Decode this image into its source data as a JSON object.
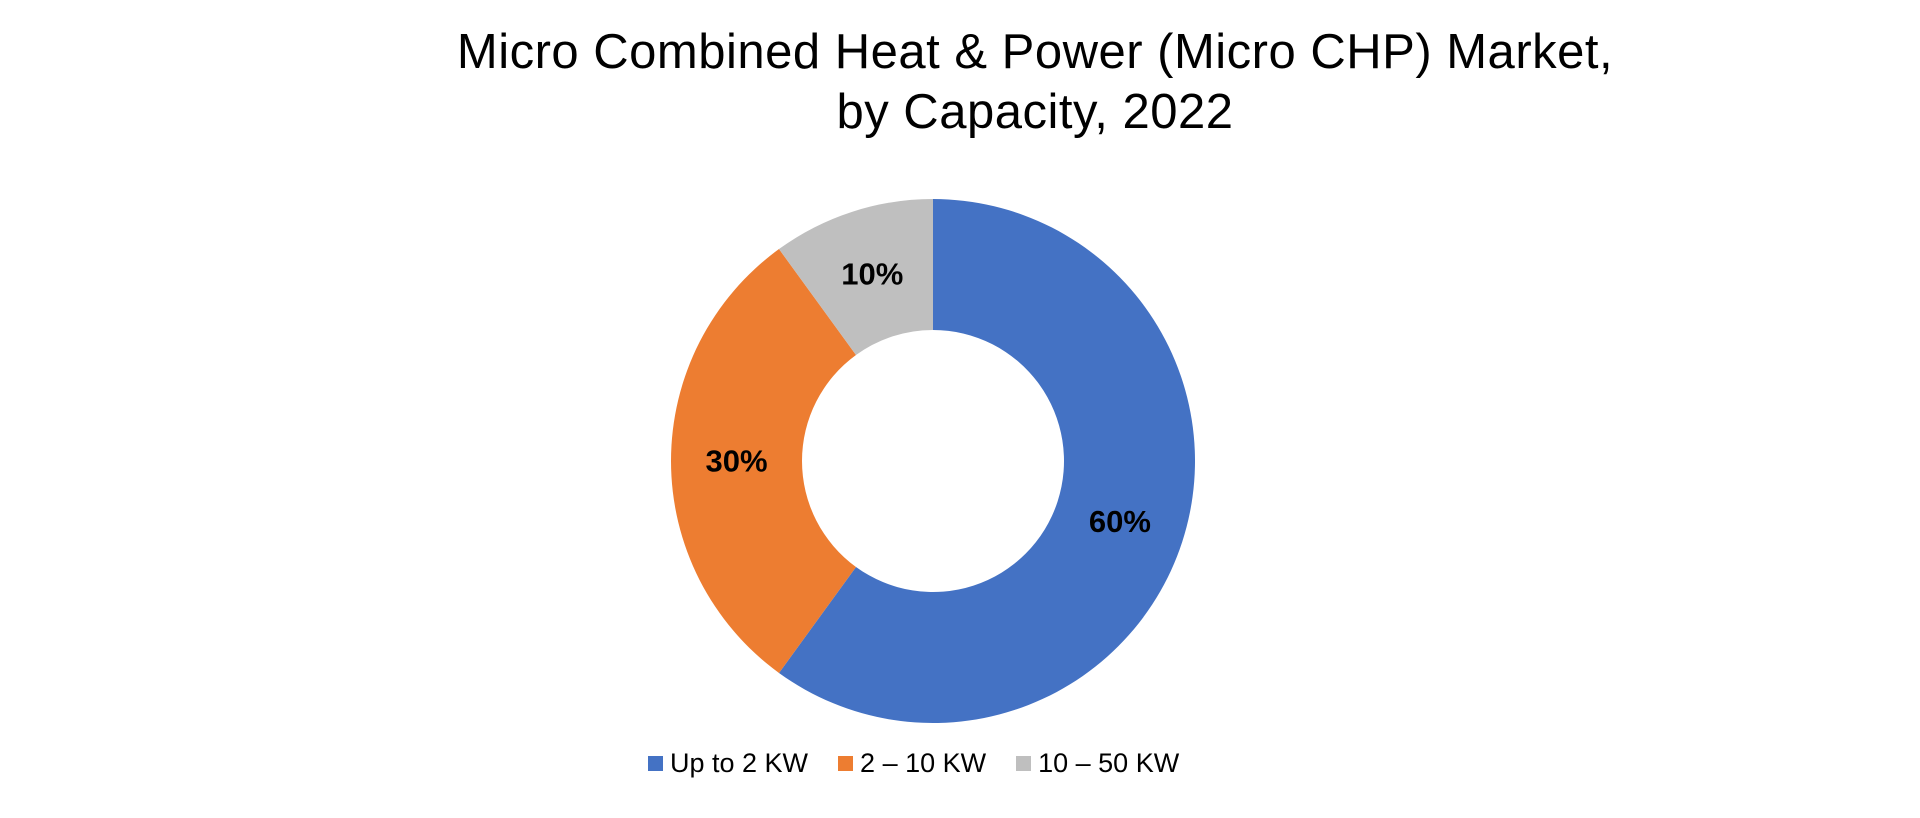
{
  "title": {
    "text": "Micro Combined Heat & Power (Micro CHP) Market, by Capacity, 2022",
    "lines": [
      "Micro Combined Heat & Power (Micro CHP) Market,",
      "by Capacity, 2022"
    ]
  },
  "chart_data": {
    "type": "pie",
    "subtype": "donut",
    "title": "Micro Combined Heat & Power (Micro CHP) Market, by Capacity, 2022",
    "categories": [
      "Up to 2 KW",
      "2 – 10 KW",
      "10 – 50 KW"
    ],
    "values": [
      60,
      30,
      10
    ],
    "unit": "%",
    "slice_labels": [
      "60%",
      "30%",
      "10%"
    ],
    "colors": [
      "#4472C4",
      "#ED7D31",
      "#BFBFBF"
    ],
    "label_color": "#000000",
    "background_color": "#FFFFFF",
    "start_angle_deg": 0,
    "direction": "clockwise",
    "inner_radius_ratio": 0.5,
    "legend_position": "bottom"
  },
  "legend": {
    "items": [
      {
        "label": "Up to 2 KW",
        "color": "#4472C4"
      },
      {
        "label": "2 – 10 KW",
        "color": "#ED7D31"
      },
      {
        "label": "10 – 50 KW",
        "color": "#BFBFBF"
      }
    ]
  }
}
